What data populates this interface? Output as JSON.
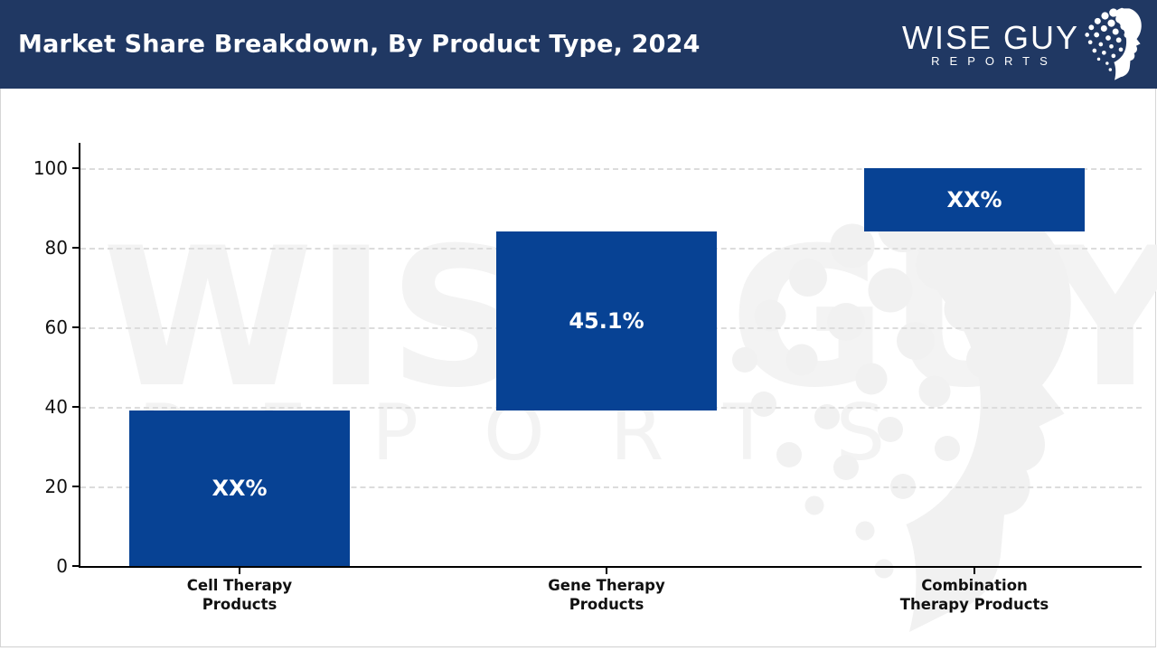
{
  "header": {
    "logo": {
      "line1": "WISE GUY",
      "line2": "REPORTS"
    }
  },
  "watermark": {
    "line1": "WISE GUY",
    "line2": "REPORTS"
  },
  "chart_data": {
    "type": "bar",
    "variant": "waterfall",
    "title": "Market Share Breakdown, By Product Type, 2024",
    "categories": [
      "Cell Therapy Products",
      "Gene Therapy Products",
      "Combination Therapy Products"
    ],
    "category_lines": [
      [
        "Cell Therapy",
        "Products"
      ],
      [
        "Gene Therapy",
        "Products"
      ],
      [
        "Combination",
        "Therapy Products"
      ]
    ],
    "segments": [
      {
        "category": "Cell Therapy Products",
        "start": 0,
        "end": 39,
        "label": "XX%"
      },
      {
        "category": "Gene Therapy Products",
        "start": 39,
        "end": 84.1,
        "label": "45.1%"
      },
      {
        "category": "Combination Therapy Products",
        "start": 84.1,
        "end": 100,
        "label": "XX%"
      }
    ],
    "xlabel": "",
    "ylabel": "",
    "yticks": [
      0,
      20,
      40,
      60,
      80,
      100
    ],
    "ylim": [
      0,
      105
    ],
    "grid": "horizontal-dashed",
    "legend": null,
    "colors": {
      "bar": "#074294",
      "bar_label": "#ffffff",
      "header_bg": "#203863",
      "grid": "#dcdcdc",
      "watermark": "#f3f3f3",
      "axis": "#000000"
    }
  }
}
